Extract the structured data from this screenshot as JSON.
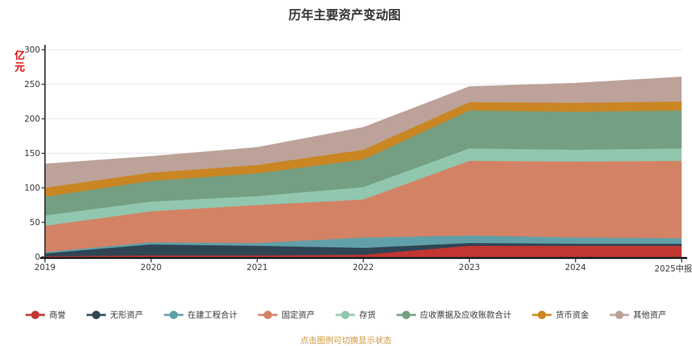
{
  "title": "历年主要资产变动图",
  "y_axis": {
    "name": "亿元",
    "name_color": "#e60000",
    "labels": [
      "0",
      "50",
      "100",
      "150",
      "200",
      "250",
      "300"
    ]
  },
  "x_axis": {
    "categories": [
      "2019",
      "2020",
      "2021",
      "2022",
      "2023",
      "2024",
      "2025中报"
    ]
  },
  "legend": {
    "items": [
      {
        "label": "商誉",
        "color": "#c23531"
      },
      {
        "label": "无形资产",
        "color": "#2f4554"
      },
      {
        "label": "在建工程合计",
        "color": "#61a0a8"
      },
      {
        "label": "固定资产",
        "color": "#d48265"
      },
      {
        "label": "存货",
        "color": "#91c7ae"
      },
      {
        "label": "应收票据及应收账款合计",
        "color": "#749f83"
      },
      {
        "label": "货币资金",
        "color": "#ca8622"
      },
      {
        "label": "其他资产",
        "color": "#bda29a"
      }
    ]
  },
  "hint": {
    "text": "点击图例可切换显示状态",
    "color": "#cf9335"
  },
  "chart_data": {
    "type": "area",
    "stacked": true,
    "unit": "亿元",
    "title": "历年主要资产变动图",
    "categories": [
      "2019",
      "2020",
      "2021",
      "2022",
      "2023",
      "2024",
      "2025中报"
    ],
    "ylim": [
      0,
      300
    ],
    "grid": true,
    "legend_position": "bottom",
    "series": [
      {
        "name": "商誉",
        "color": "#c23531",
        "values": [
          1,
          2,
          2,
          3,
          16,
          16,
          16
        ]
      },
      {
        "name": "无形资产",
        "color": "#2f4554",
        "values": [
          4,
          16,
          14,
          10,
          4,
          3,
          3
        ]
      },
      {
        "name": "在建工程合计",
        "color": "#61a0a8",
        "values": [
          2,
          3,
          4,
          15,
          11,
          9,
          8
        ]
      },
      {
        "name": "固定资产",
        "color": "#d48265",
        "values": [
          38,
          45,
          55,
          55,
          108,
          110,
          112
        ]
      },
      {
        "name": "存货",
        "color": "#91c7ae",
        "values": [
          15,
          14,
          13,
          18,
          18,
          17,
          18
        ]
      },
      {
        "name": "应收票据及应收账款合计",
        "color": "#749f83",
        "values": [
          27,
          30,
          33,
          40,
          55,
          55,
          55
        ]
      },
      {
        "name": "货币资金",
        "color": "#ca8622",
        "values": [
          13,
          12,
          12,
          14,
          12,
          13,
          13
        ]
      },
      {
        "name": "其他资产",
        "color": "#bda29a",
        "values": [
          34,
          23,
          25,
          32,
          22,
          28,
          35
        ]
      }
    ]
  }
}
